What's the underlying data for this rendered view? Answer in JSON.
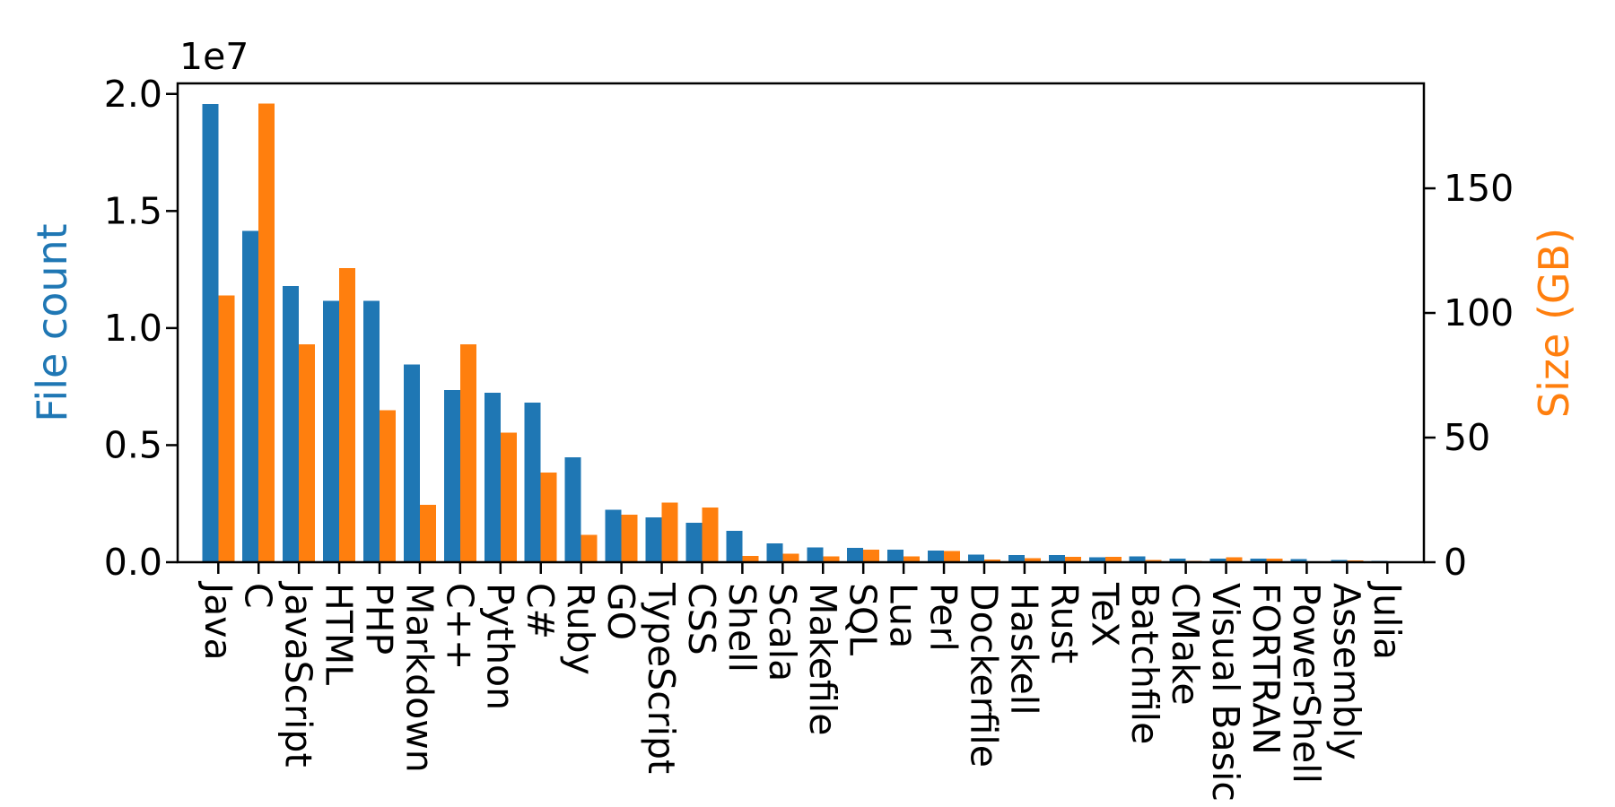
{
  "chart_data": {
    "type": "bar",
    "title": "",
    "grid": false,
    "legend_position": "none",
    "ylabel_left": "File count",
    "ylabel_right": "Size (GB)",
    "categories": [
      "Java",
      "C",
      "JavaScript",
      "HTML",
      "PHP",
      "Markdown",
      "C++",
      "Python",
      "C#",
      "Ruby",
      "GO",
      "TypeScript",
      "CSS",
      "Shell",
      "Scala",
      "Makefile",
      "SQL",
      "Lua",
      "Perl",
      "Dockerfile",
      "Haskell",
      "Rust",
      "TeX",
      "Batchfile",
      "CMake",
      "Visual Basic",
      "FORTRAN",
      "PowerShell",
      "Assembly",
      "Julia"
    ],
    "series": [
      {
        "name": "File count",
        "axis": "left",
        "color": "#1f77b4",
        "values": [
          19560000,
          14160000,
          11800000,
          11170000,
          11160000,
          8440000,
          7360000,
          7240000,
          6820000,
          4490000,
          2250000,
          1910000,
          1690000,
          1350000,
          800000,
          630000,
          620000,
          540000,
          500000,
          330000,
          300000,
          300000,
          220000,
          250000,
          160000,
          150000,
          150000,
          130000,
          100000,
          50000
        ]
      },
      {
        "name": "Size (GB)",
        "axis": "right",
        "color": "#ff7f0e",
        "values": [
          107,
          184,
          87.5,
          118,
          61,
          23,
          87.5,
          52,
          36,
          11,
          19,
          24,
          22,
          2.6,
          3.5,
          2.4,
          5,
          2.3,
          4.5,
          1,
          1.7,
          2.1,
          2.1,
          0.9,
          0.6,
          2,
          1.5,
          0.4,
          0.8,
          0.2
        ]
      }
    ],
    "left_axis": {
      "offset_label": "1e7",
      "max": 20450000,
      "min": 0,
      "ticks": [
        {
          "value": 0,
          "label": "0.0"
        },
        {
          "value": 5000000,
          "label": "0.5"
        },
        {
          "value": 10000000,
          "label": "1.0"
        },
        {
          "value": 15000000,
          "label": "1.5"
        },
        {
          "value": 20000000,
          "label": "2.0"
        }
      ]
    },
    "right_axis": {
      "unit": "GB",
      "max": 192.1,
      "min": 0,
      "ticks": [
        {
          "value": 0,
          "label": "0"
        },
        {
          "value": 50,
          "label": "50"
        },
        {
          "value": 100,
          "label": "100"
        },
        {
          "value": 150,
          "label": "150"
        }
      ]
    }
  }
}
